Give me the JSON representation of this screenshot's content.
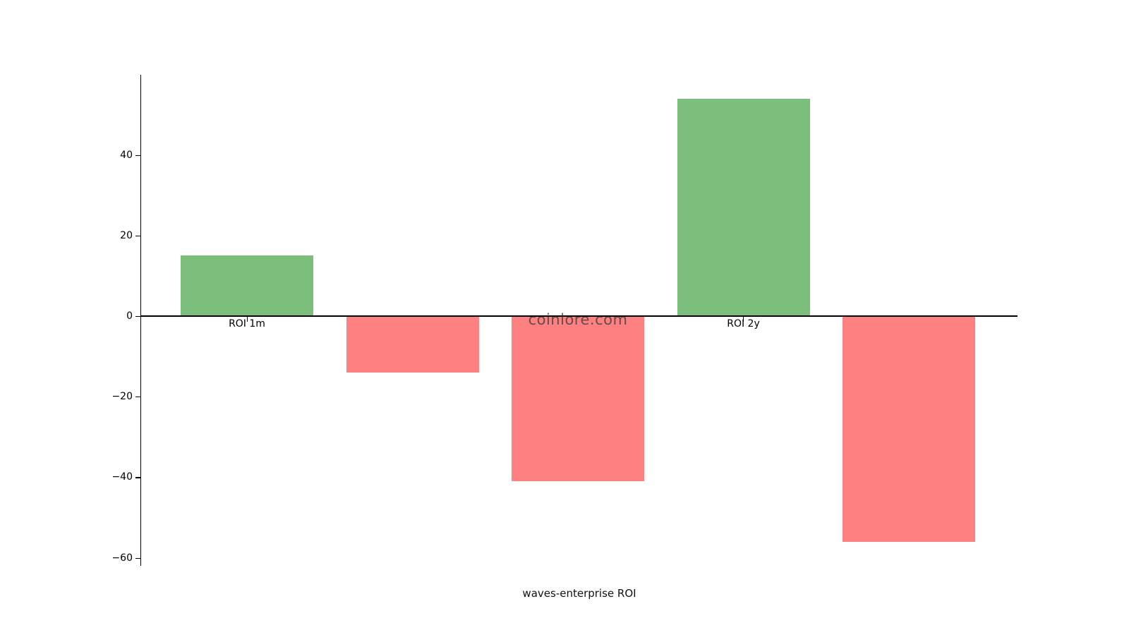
{
  "chart_data": {
    "type": "bar",
    "title": "waves-enterprise ROI",
    "watermark": "coinlore.com",
    "categories": [
      "ROI 1m",
      "",
      "",
      "ROI 2y",
      ""
    ],
    "values": [
      15,
      -14,
      -41,
      54,
      -56
    ],
    "ytick_values": [
      40,
      20,
      0,
      -20,
      -40,
      -60
    ],
    "ytick_labels": [
      "40",
      "20",
      "0",
      "−20",
      "−40",
      "−60"
    ],
    "ylim": [
      -62,
      60
    ],
    "xlabel": "waves-enterprise ROI",
    "ylabel": "",
    "grid": false,
    "legend": "none",
    "positive_color": "#7cbf7d",
    "negative_color": "#fd8181",
    "axis_color": "#000000",
    "background_color": "#ffffff"
  }
}
